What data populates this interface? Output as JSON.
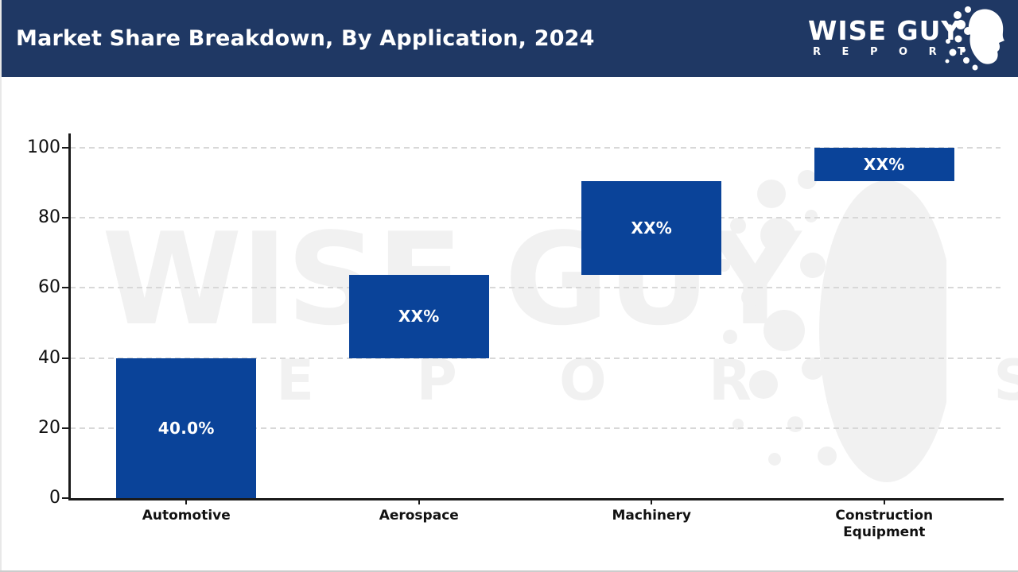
{
  "header": {
    "title": "Market Share Breakdown, By Application, 2024",
    "logo": {
      "line1": "WISE GUY",
      "line2": "R E P O R T S"
    }
  },
  "watermark": {
    "line1": "WISE GUY",
    "line2": "R E P O R T S"
  },
  "colors": {
    "header_bg": "#1f3864",
    "bar": "#0a4399",
    "bar_label": "#ffffff",
    "gridline": "#d8d8d8",
    "axis": "#1a1a1a",
    "watermark": "#f1f1f1",
    "page_border": "#cccccc"
  },
  "chart_data": {
    "type": "bar",
    "subtype": "waterfall",
    "title": "Market Share Breakdown, By Application, 2024",
    "categories": [
      "Automotive",
      "Aerospace",
      "Machinery",
      "Construction Equipment"
    ],
    "segments": [
      {
        "category": "Automotive",
        "start": 0,
        "end": 40,
        "value": 40.0,
        "label": "40.0%"
      },
      {
        "category": "Aerospace",
        "start": 40,
        "end": 63.7,
        "value_estimate": 23.7,
        "label": "XX%"
      },
      {
        "category": "Machinery",
        "start": 63.7,
        "end": 90.4,
        "value_estimate": 26.7,
        "label": "XX%"
      },
      {
        "category": "Construction Equipment",
        "start": 90.4,
        "end": 100,
        "value_estimate": 9.6,
        "label": "XX%"
      }
    ],
    "xlabel": "",
    "ylabel": "",
    "ylim": [
      0,
      100
    ],
    "yticks": [
      0,
      20,
      40,
      60,
      80,
      100
    ],
    "grid": "horizontal-dashed",
    "legend": "none"
  }
}
